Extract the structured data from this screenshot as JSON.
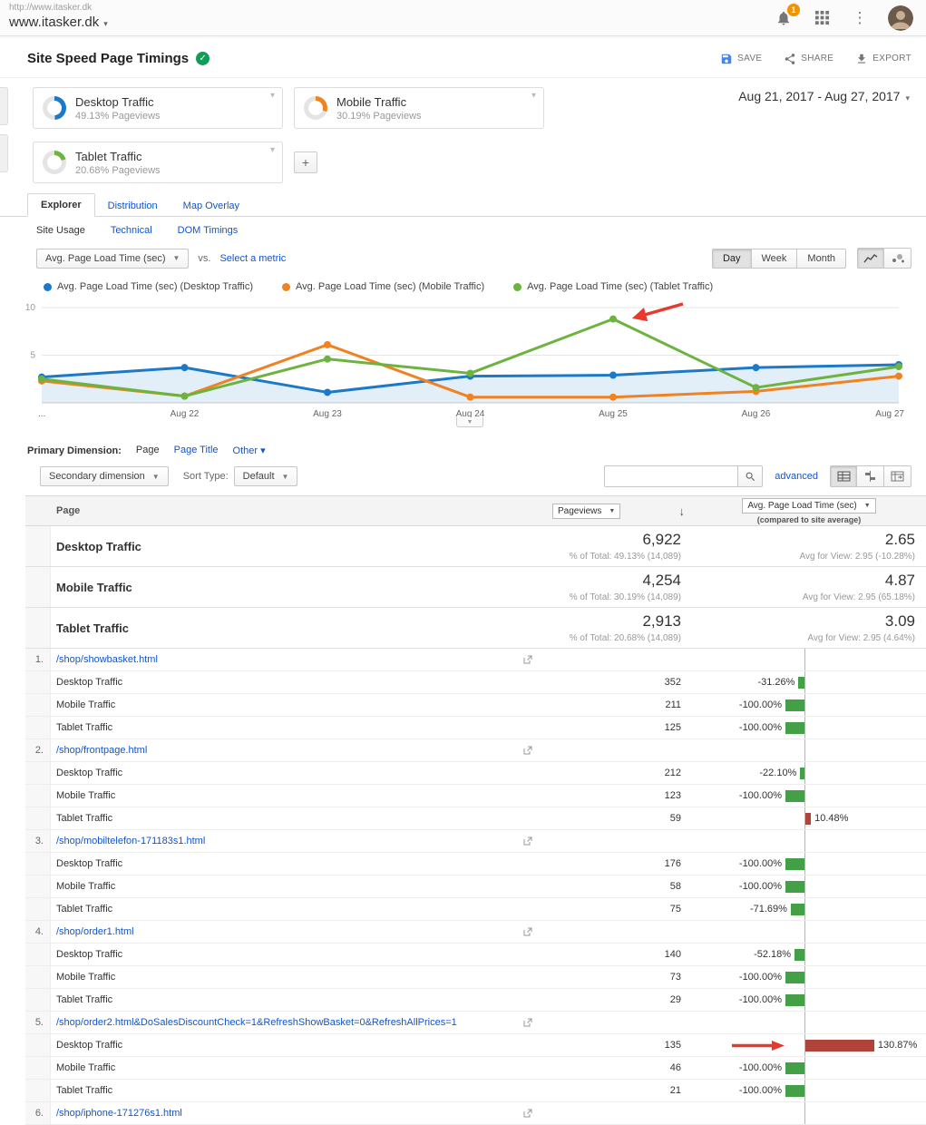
{
  "topbar": {
    "url": "http://www.itasker.dk",
    "account_name": "www.itasker.dk",
    "notification_badge": "1"
  },
  "header": {
    "title": "Site Speed Page Timings",
    "save_label": "SAVE",
    "share_label": "SHARE",
    "export_label": "EXPORT"
  },
  "date_range": "Aug 21, 2017 - Aug 27, 2017",
  "add_segment_label": "+",
  "segments": [
    {
      "name": "Desktop Traffic",
      "detail": "49.13% Pageviews",
      "color": "#1c79c7",
      "fraction": 0.4913
    },
    {
      "name": "Mobile Traffic",
      "detail": "30.19% Pageviews",
      "color": "#ef8321",
      "fraction": 0.3019
    },
    {
      "name": "Tablet Traffic",
      "detail": "20.68% Pageviews",
      "color": "#6cb33f",
      "fraction": 0.2068
    }
  ],
  "tabs": [
    {
      "label": "Explorer",
      "active": true
    },
    {
      "label": "Distribution",
      "active": false
    },
    {
      "label": "Map Overlay",
      "active": false
    }
  ],
  "subtabs": [
    {
      "label": "Site Usage",
      "active": true
    },
    {
      "label": "Technical",
      "active": false
    },
    {
      "label": "DOM Timings",
      "active": false
    }
  ],
  "metric_bar": {
    "metric_select": "Avg. Page Load Time (sec)",
    "vs_label": "vs.",
    "select_metric_label": "Select a metric",
    "granularity": [
      {
        "label": "Day",
        "active": true
      },
      {
        "label": "Week",
        "active": false
      },
      {
        "label": "Month",
        "active": false
      }
    ]
  },
  "chart_data": {
    "type": "line",
    "title": "",
    "xlabel": "",
    "ylabel": "Avg. Page Load Time (sec)",
    "x": [
      "...",
      "Aug 22",
      "Aug 23",
      "Aug 24",
      "Aug 25",
      "Aug 26",
      "Aug 27"
    ],
    "ylim": [
      0,
      10
    ],
    "yticks": [
      5,
      10
    ],
    "grid": true,
    "legend_position": "top",
    "series": [
      {
        "name": "Avg. Page Load Time (sec) (Desktop Traffic)",
        "color": "#1c79c7",
        "area": true,
        "values": [
          2.7,
          3.7,
          1.1,
          2.8,
          2.9,
          3.7,
          4.0
        ]
      },
      {
        "name": "Avg. Page Load Time (sec) (Mobile Traffic)",
        "color": "#ef8321",
        "area": false,
        "values": [
          2.3,
          0.7,
          6.1,
          0.6,
          0.6,
          1.2,
          2.8
        ]
      },
      {
        "name": "Avg. Page Load Time (sec) (Tablet Traffic)",
        "color": "#6cb33f",
        "area": false,
        "values": [
          2.5,
          0.7,
          4.6,
          3.1,
          8.8,
          1.6,
          3.8
        ]
      }
    ],
    "annotation": "red arrow pointing at Tablet Traffic peak on Aug 25"
  },
  "primary_dimension": {
    "label": "Primary Dimension:",
    "options": [
      {
        "label": "Page",
        "active": true,
        "dropdown": false
      },
      {
        "label": "Page Title",
        "active": false,
        "dropdown": false
      },
      {
        "label": "Other",
        "active": false,
        "dropdown": true
      }
    ]
  },
  "table_toolbar": {
    "secondary_dimension_label": "Secondary dimension",
    "sort_type_label": "Sort Type:",
    "sort_type_value": "Default",
    "search_value": "",
    "advanced_label": "advanced"
  },
  "table": {
    "columns": {
      "page": "Page",
      "pageviews": "Pageviews",
      "metric": "Avg. Page Load Time (sec)",
      "metric_note": "(compared to site average)"
    },
    "summary_rows": [
      {
        "label": "Desktop Traffic",
        "pageviews": "6,922",
        "pageviews_note": "% of Total: 49.13% (14,089)",
        "metric": "2.65",
        "metric_note": "Avg for View: 2.95 (-10.28%)"
      },
      {
        "label": "Mobile Traffic",
        "pageviews": "4,254",
        "pageviews_note": "% of Total: 30.19% (14,089)",
        "metric": "4.87",
        "metric_note": "Avg for View: 2.95 (65.18%)"
      },
      {
        "label": "Tablet Traffic",
        "pageviews": "2,913",
        "pageviews_note": "% of Total: 20.68% (14,089)",
        "metric": "3.09",
        "metric_note": "Avg for View: 2.95 (4.64%)"
      }
    ],
    "groups": [
      {
        "index": "1.",
        "page": "/shop/showbasket.html",
        "rows": [
          {
            "label": "Desktop Traffic",
            "pageviews": "352",
            "delta_pct": -31.26,
            "delta_label": "-31.26%"
          },
          {
            "label": "Mobile Traffic",
            "pageviews": "211",
            "delta_pct": -100.0,
            "delta_label": "-100.00%"
          },
          {
            "label": "Tablet Traffic",
            "pageviews": "125",
            "delta_pct": -100.0,
            "delta_label": "-100.00%"
          }
        ]
      },
      {
        "index": "2.",
        "page": "/shop/frontpage.html",
        "rows": [
          {
            "label": "Desktop Traffic",
            "pageviews": "212",
            "delta_pct": -22.1,
            "delta_label": "-22.10%"
          },
          {
            "label": "Mobile Traffic",
            "pageviews": "123",
            "delta_pct": -100.0,
            "delta_label": "-100.00%"
          },
          {
            "label": "Tablet Traffic",
            "pageviews": "59",
            "delta_pct": 10.48,
            "delta_label": "10.48%"
          }
        ]
      },
      {
        "index": "3.",
        "page": "/shop/mobiltelefon-171183s1.html",
        "rows": [
          {
            "label": "Desktop Traffic",
            "pageviews": "176",
            "delta_pct": -100.0,
            "delta_label": "-100.00%"
          },
          {
            "label": "Mobile Traffic",
            "pageviews": "58",
            "delta_pct": -100.0,
            "delta_label": "-100.00%"
          },
          {
            "label": "Tablet Traffic",
            "pageviews": "75",
            "delta_pct": -71.69,
            "delta_label": "-71.69%"
          }
        ]
      },
      {
        "index": "4.",
        "page": "/shop/order1.html",
        "rows": [
          {
            "label": "Desktop Traffic",
            "pageviews": "140",
            "delta_pct": -52.18,
            "delta_label": "-52.18%"
          },
          {
            "label": "Mobile Traffic",
            "pageviews": "73",
            "delta_pct": -100.0,
            "delta_label": "-100.00%"
          },
          {
            "label": "Tablet Traffic",
            "pageviews": "29",
            "delta_pct": -100.0,
            "delta_label": "-100.00%"
          }
        ]
      },
      {
        "index": "5.",
        "page": "/shop/order2.html&DoSalesDiscountCheck=1&RefreshShowBasket=0&RefreshAllPrices=1",
        "rows": [
          {
            "label": "Desktop Traffic",
            "pageviews": "135",
            "delta_pct": 130.87,
            "delta_label": "130.87%",
            "arrow": true
          },
          {
            "label": "Mobile Traffic",
            "pageviews": "46",
            "delta_pct": -100.0,
            "delta_label": "-100.00%"
          },
          {
            "label": "Tablet Traffic",
            "pageviews": "21",
            "delta_pct": -100.0,
            "delta_label": "-100.00%"
          }
        ]
      },
      {
        "index": "6.",
        "page": "/shop/iphone-171276s1.html",
        "rows": []
      }
    ]
  },
  "colors": {
    "negative_bar": "#43a047",
    "positive_bar": "#b0443a",
    "link": "#1155cc",
    "annotation_arrow": "#e8392e",
    "accent_save": "#4285f4"
  }
}
